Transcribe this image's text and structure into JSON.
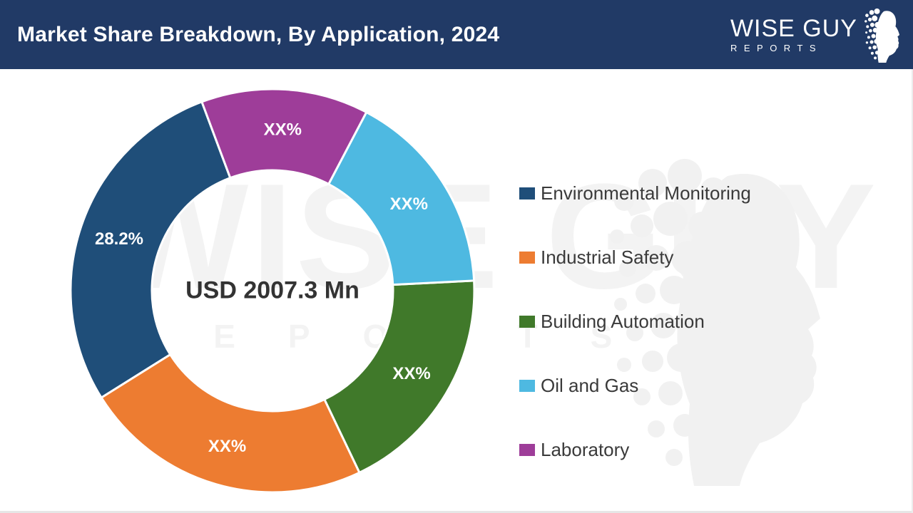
{
  "header": {
    "title": "Market Share Breakdown, By Application, 2024",
    "logo_line1": "WISE GUY",
    "logo_line2": "REPORTS"
  },
  "watermark": {
    "line1": "WISE GUY",
    "line2": "REPORTS"
  },
  "center_label": "USD 2007.3 Mn",
  "chart_data": {
    "type": "pie",
    "subtype": "donut",
    "title": "Market Share Breakdown, By Application, 2024",
    "center_label": "USD 2007.3 Mn",
    "legend_position": "right",
    "start_angle_deg": -20.5,
    "winding": "counterclockwise_from_top_in_legend_order",
    "slices": [
      {
        "name": "Environmental Monitoring",
        "label": "28.2%",
        "pct": 28.2,
        "color": "#1f4e79"
      },
      {
        "name": "Industrial Safety",
        "label": "XX%",
        "pct": 23.2,
        "color": "#ed7c31"
      },
      {
        "name": "Building Automation",
        "label": "XX%",
        "pct": 18.7,
        "color": "#40792a"
      },
      {
        "name": "Oil and Gas",
        "label": "XX%",
        "pct": 16.5,
        "color": "#4eb9e1"
      },
      {
        "name": "Laboratory",
        "label": "XX%",
        "pct": 13.4,
        "color": "#9e3d99"
      }
    ]
  },
  "colors": {
    "header_bg": "#213a66",
    "legend_text": "#3a3a3a",
    "center_text": "#333333",
    "watermark": "#f3f3f3",
    "slice_stroke": "#ffffff"
  }
}
